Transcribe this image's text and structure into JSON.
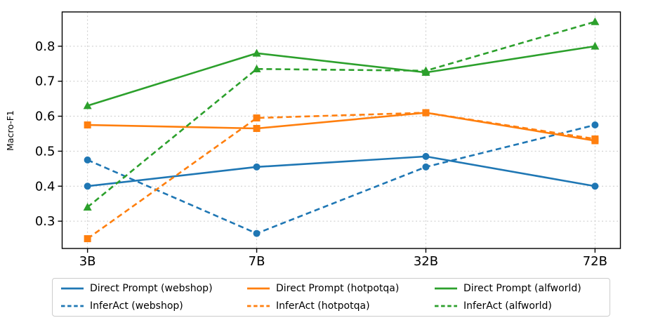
{
  "figure": {
    "background": "#ffffff",
    "axis_color": "#000000"
  },
  "chart_data": {
    "type": "line",
    "title": "",
    "xlabel": "",
    "ylabel": "Macro-F1",
    "categories": [
      "3B",
      "7B",
      "32B",
      "72B"
    ],
    "yticks": [
      0.3,
      0.4,
      0.5,
      0.6,
      0.7,
      0.8
    ],
    "ylim": [
      0.222,
      0.898
    ],
    "xlim": [
      -0.15,
      3.15
    ],
    "grid": true,
    "grid_color": "#c9c9c9",
    "legend_position": "below-center",
    "series": [
      {
        "name": "Direct Prompt (webshop)",
        "color": "#1f77b4",
        "style": "solid",
        "marker": "circle",
        "values": [
          0.4,
          0.455,
          0.485,
          0.4
        ]
      },
      {
        "name": "InferAct (webshop)",
        "color": "#1f77b4",
        "style": "dashed",
        "marker": "circle",
        "values": [
          0.475,
          0.265,
          0.455,
          0.575
        ]
      },
      {
        "name": "Direct Prompt (hotpotqa)",
        "color": "#ff7f0e",
        "style": "solid",
        "marker": "square",
        "values": [
          0.575,
          0.565,
          0.61,
          0.53
        ]
      },
      {
        "name": "InferAct (hotpotqa)",
        "color": "#ff7f0e",
        "style": "dashed",
        "marker": "square",
        "values": [
          0.25,
          0.595,
          0.61,
          0.535
        ]
      },
      {
        "name": "Direct Prompt (alfworld)",
        "color": "#2ca02c",
        "style": "solid",
        "marker": "triangle",
        "values": [
          0.63,
          0.78,
          0.725,
          0.8
        ]
      },
      {
        "name": "InferAct (alfworld)",
        "color": "#2ca02c",
        "style": "dashed",
        "marker": "triangle",
        "values": [
          0.34,
          0.735,
          0.73,
          0.87
        ]
      }
    ]
  }
}
